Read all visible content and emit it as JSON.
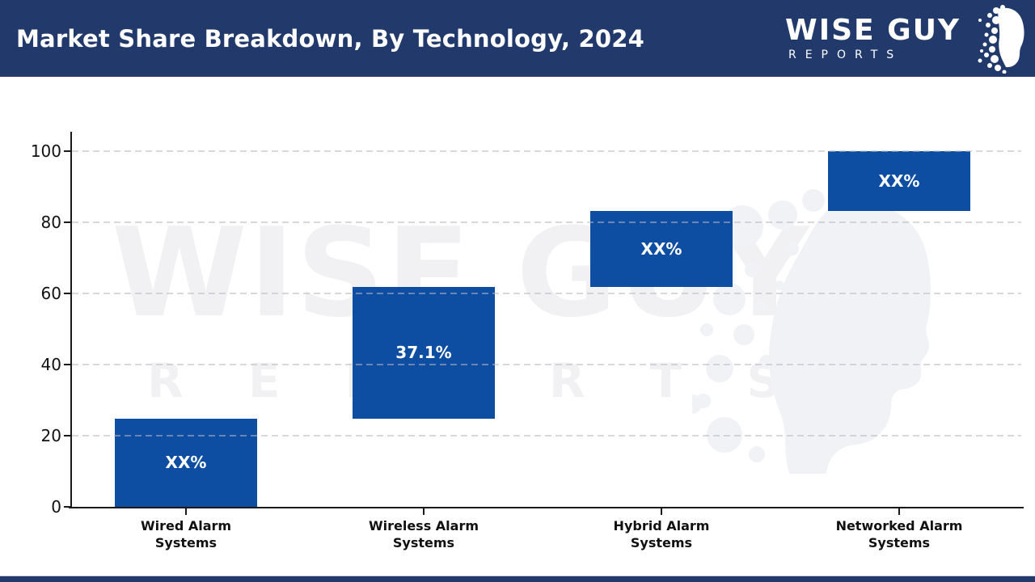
{
  "header": {
    "title": "Market Share Breakdown, By Technology, 2024",
    "logo": {
      "line1": "WISE GUY",
      "line2": "REPORTS"
    }
  },
  "watermark": {
    "line1": "WISE GUY",
    "line2": "R E P O R T S"
  },
  "colors": {
    "header_bg": "#213a6b",
    "bar": "#0d4da2",
    "bar_label": "#ffffff",
    "grid": "#dcdcdc",
    "axis": "#1a1a1a",
    "watermark": "#f1f1f4"
  },
  "chart_data": {
    "type": "bar",
    "subtype": "floating-waterfall",
    "title": "Market Share Breakdown, By Technology, 2024",
    "xlabel": "",
    "ylabel": "",
    "ylim": [
      0,
      105
    ],
    "yticks": [
      0,
      20,
      40,
      60,
      80,
      100
    ],
    "grid": "horizontal-dashed",
    "legend": "none",
    "categories": [
      "Wired Alarm Systems",
      "Wireless Alarm Systems",
      "Hybrid Alarm Systems",
      "Networked Alarm Systems"
    ],
    "category_lines": [
      [
        "Wired Alarm",
        "Systems"
      ],
      [
        "Wireless Alarm",
        "Systems"
      ],
      [
        "Hybrid Alarm",
        "Systems"
      ],
      [
        "Networked Alarm",
        "Systems"
      ]
    ],
    "bars": [
      {
        "category": "Wired Alarm Systems",
        "start": 0,
        "end": 24.8,
        "label": "XX%"
      },
      {
        "category": "Wireless Alarm Systems",
        "start": 24.8,
        "end": 61.9,
        "label": "37.1%"
      },
      {
        "category": "Hybrid Alarm Systems",
        "start": 61.9,
        "end": 83.2,
        "label": "XX%"
      },
      {
        "category": "Networked Alarm Systems",
        "start": 83.2,
        "end": 100,
        "label": "XX%"
      }
    ]
  }
}
